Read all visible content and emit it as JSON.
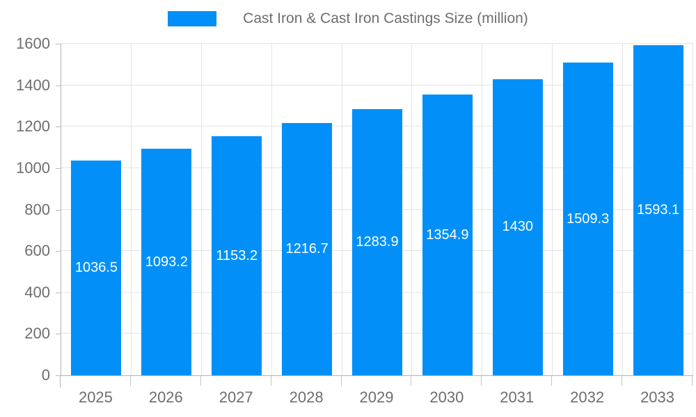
{
  "legend": {
    "label": "Cast Iron & Cast Iron Castings Size (million)"
  },
  "chart_data": {
    "type": "bar",
    "title": "Cast Iron & Cast Iron Castings Size (million)",
    "categories": [
      "2025",
      "2026",
      "2027",
      "2028",
      "2029",
      "2030",
      "2031",
      "2032",
      "2033"
    ],
    "values": [
      1036.5,
      1093.2,
      1153.2,
      1216.7,
      1283.9,
      1354.9,
      1430,
      1509.3,
      1593.1
    ],
    "bar_labels": [
      "1036.5",
      "1093.2",
      "1153.2",
      "1216.7",
      "1283.9",
      "1354.9",
      "1430",
      "1509.3",
      "1593.1"
    ],
    "xlabel": "",
    "ylabel": "",
    "ylim": [
      0,
      1600
    ],
    "yticks": [
      0,
      200,
      400,
      600,
      800,
      1000,
      1200,
      1400,
      1600
    ],
    "grid": true,
    "legend_position": "top",
    "colors": {
      "bar": "#0290F8",
      "bar_value_text": "#ffffff",
      "axis_text": "#6e6e6e",
      "gridline": "#e4e4e4",
      "axis_line": "#b3b3b3"
    }
  }
}
